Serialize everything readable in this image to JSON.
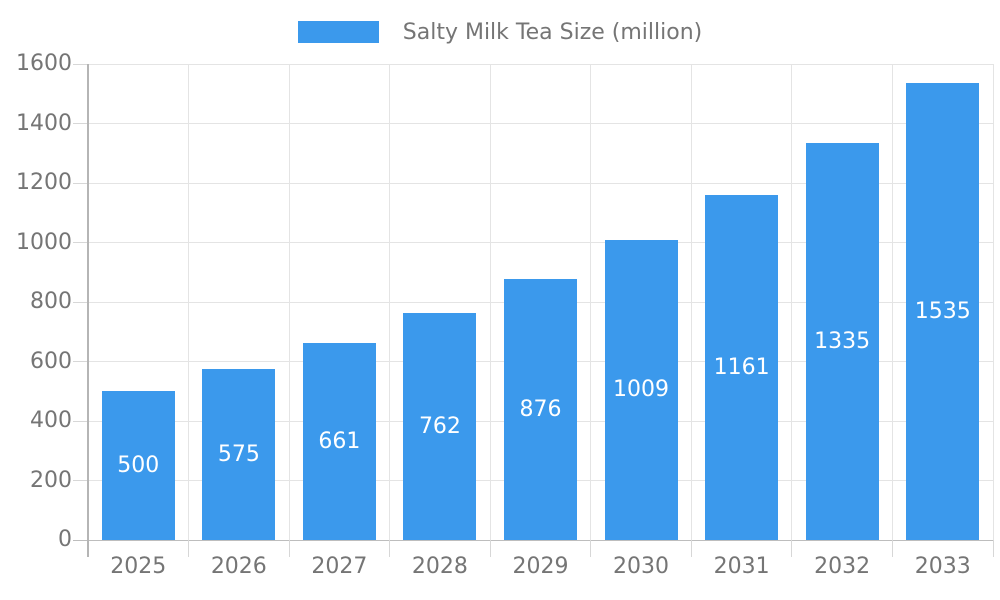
{
  "legend": {
    "label": "Salty Milk Tea Size (million)"
  },
  "chart_data": {
    "type": "bar",
    "title": "Salty Milk Tea Size (million)",
    "categories": [
      "2025",
      "2026",
      "2027",
      "2028",
      "2029",
      "2030",
      "2031",
      "2032",
      "2033"
    ],
    "values": [
      500,
      575,
      661,
      762,
      876,
      1009,
      1161,
      1335,
      1535
    ],
    "xlabel": "",
    "ylabel": "",
    "ylim": [
      0,
      1600
    ],
    "ytick_step": 200,
    "yticks": [
      "0",
      "200",
      "400",
      "600",
      "800",
      "1000",
      "1200",
      "1400",
      "1600"
    ],
    "grid": true,
    "legend_position": "top",
    "bar_labels_inside": true
  },
  "colors": {
    "bar": "#3B99EC",
    "bar_label": "#ffffff",
    "grid": "#e4e4e4",
    "baseline": "#bdbdbd",
    "axis": "#b5b5b5",
    "tick": "#d7d7d7",
    "label": "#757575",
    "background": "#ffffff"
  }
}
